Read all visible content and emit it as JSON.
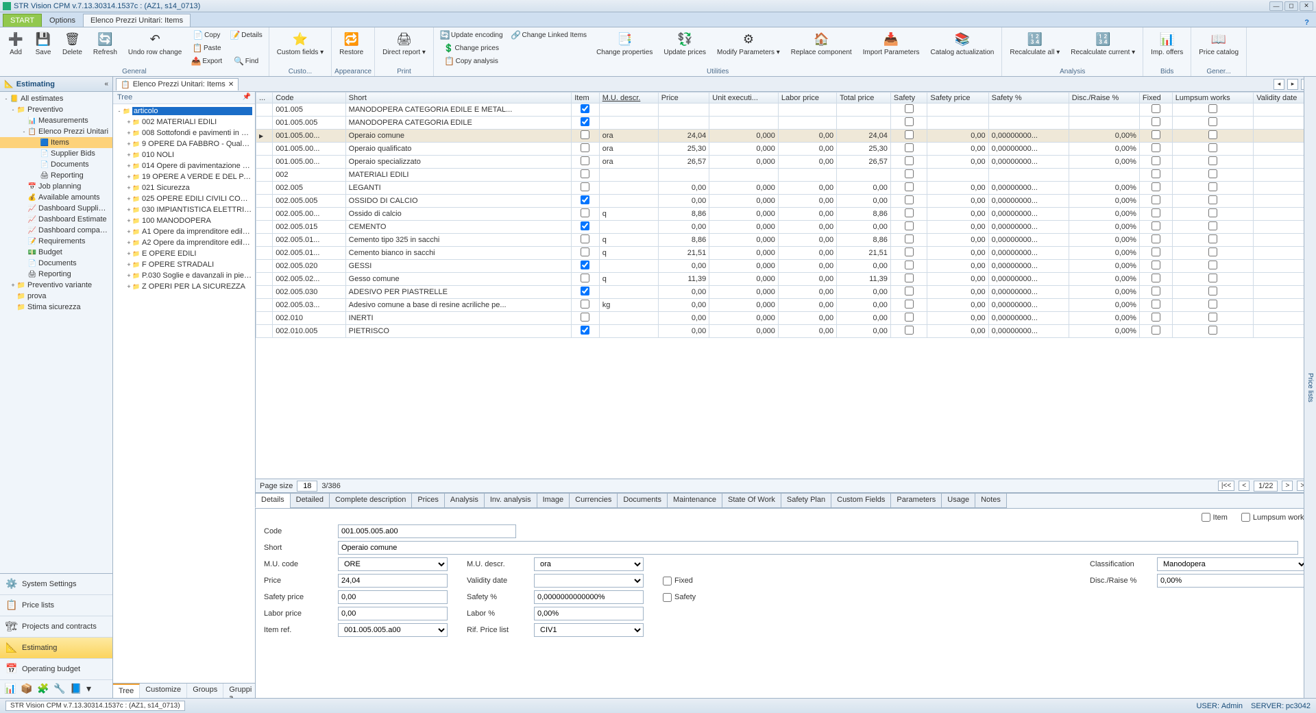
{
  "app": {
    "title": "STR Vision CPM v.7.13.30314.1537c : (AZ1, s14_0713)",
    "status_title": "STR Vision CPM v.7.13.30314.1537c : (AZ1, s14_0713)",
    "user_label": "USER:",
    "user": "Admin",
    "server_label": "SERVER:",
    "server": "pc3042"
  },
  "ribbon_tabs": {
    "start": "START",
    "options": "Options",
    "active": "Elenco Prezzi Unitari: Items"
  },
  "ribbon": {
    "groups": {
      "general": {
        "label": "General"
      },
      "custo": {
        "label": "Custo..."
      },
      "appear": {
        "label": "Appearance"
      },
      "print": {
        "label": "Print"
      },
      "utilities": {
        "label": "Utilities"
      },
      "analysis": {
        "label": "Analysis"
      },
      "bids": {
        "label": "Bids"
      },
      "gener": {
        "label": "Gener..."
      }
    },
    "btns": {
      "add": "Add",
      "save": "Save",
      "delete": "Delete",
      "refresh": "Refresh",
      "undo": "Undo row change",
      "copy": "Copy",
      "paste": "Paste",
      "export": "Export",
      "details": "Details",
      "find": "Find",
      "custom_fields": "Custom fields ▾",
      "restore": "Restore",
      "direct_report": "Direct report ▾",
      "update_encoding": "Update encoding",
      "change_prices": "Change prices",
      "copy_analysis": "Copy analysis",
      "change_linked": "Change Linked Items",
      "change_props": "Change properties",
      "update_prices": "Update prices",
      "modify_params": "Modify Parameters ▾",
      "replace_comp": "Replace component",
      "import_params": "Import Parameters",
      "catalog_act": "Catalog actualization",
      "recalc_all": "Recalculate all ▾",
      "recalc_cur": "Recalculate current ▾",
      "imp_offers": "Imp. offers",
      "price_catalog": "Price catalog"
    }
  },
  "leftnav": {
    "title": "Estimating",
    "tree": [
      {
        "pad": 4,
        "exp": "-",
        "ic": "📒",
        "lbl": "All estimates"
      },
      {
        "pad": 14,
        "exp": "-",
        "ic": "📁",
        "lbl": "Preventivo"
      },
      {
        "pad": 30,
        "exp": " ",
        "ic": "📊",
        "lbl": "Measurements"
      },
      {
        "pad": 30,
        "exp": "-",
        "ic": "📋",
        "lbl": "Elenco Prezzi Unitari"
      },
      {
        "pad": 48,
        "exp": " ",
        "ic": "🟦",
        "lbl": "Items",
        "sel": true
      },
      {
        "pad": 48,
        "exp": " ",
        "ic": "📄",
        "lbl": "Supplier Bids"
      },
      {
        "pad": 48,
        "exp": " ",
        "ic": "📄",
        "lbl": "Documents"
      },
      {
        "pad": 48,
        "exp": " ",
        "ic": "🖨",
        "lbl": "Reporting"
      },
      {
        "pad": 30,
        "exp": " ",
        "ic": "📅",
        "lbl": "Job planning"
      },
      {
        "pad": 30,
        "exp": " ",
        "ic": "💰",
        "lbl": "Available amounts"
      },
      {
        "pad": 30,
        "exp": " ",
        "ic": "📈",
        "lbl": "Dashboard Supplier Bids"
      },
      {
        "pad": 30,
        "exp": " ",
        "ic": "📈",
        "lbl": "Dashboard Estimate"
      },
      {
        "pad": 30,
        "exp": " ",
        "ic": "📈",
        "lbl": "Dashboard comparison"
      },
      {
        "pad": 30,
        "exp": " ",
        "ic": "📝",
        "lbl": "Requirements"
      },
      {
        "pad": 30,
        "exp": " ",
        "ic": "💵",
        "lbl": "Budget"
      },
      {
        "pad": 30,
        "exp": " ",
        "ic": "📄",
        "lbl": "Documents"
      },
      {
        "pad": 30,
        "exp": " ",
        "ic": "🖨",
        "lbl": "Reporting"
      },
      {
        "pad": 14,
        "exp": "+",
        "ic": "📁",
        "lbl": "Preventivo variante"
      },
      {
        "pad": 14,
        "exp": " ",
        "ic": "📁",
        "lbl": "prova"
      },
      {
        "pad": 14,
        "exp": " ",
        "ic": "📁",
        "lbl": "Stima sicurezza"
      }
    ],
    "bottom": [
      {
        "ic": "⚙️",
        "lbl": "System Settings"
      },
      {
        "ic": "📋",
        "lbl": "Price lists"
      },
      {
        "ic": "🏗",
        "lbl": "Projects and contracts"
      },
      {
        "ic": "📐",
        "lbl": "Estimating",
        "active": true
      },
      {
        "ic": "📅",
        "lbl": "Operating budget"
      }
    ]
  },
  "doctab": {
    "title": "Elenco Prezzi Unitari: Items"
  },
  "tree_panel": {
    "head": "Tree",
    "nodes": [
      {
        "pad": 4,
        "exp": "-",
        "root": true,
        "lbl": "articolo"
      },
      {
        "pad": 18,
        "exp": "+",
        "lbl": "002 MATERIALI EDILI"
      },
      {
        "pad": 18,
        "exp": "+",
        "lbl": "008 Sottofondi e pavimenti in cemento"
      },
      {
        "pad": 18,
        "exp": "+",
        "lbl": "9 OPERE DA FABBRO - Qualora le f..."
      },
      {
        "pad": 18,
        "exp": "+",
        "lbl": "010 NOLI"
      },
      {
        "pad": 18,
        "exp": "+",
        "lbl": "014 Opere di pavimentazione e rive..."
      },
      {
        "pad": 18,
        "exp": "+",
        "lbl": "19 OPERE A VERDE E DEL PAESAGGIO"
      },
      {
        "pad": 18,
        "exp": "+",
        "lbl": "021 Sicurezza"
      },
      {
        "pad": 18,
        "exp": "+",
        "lbl": "025 OPERE EDILI CIVILI CON ANALISI"
      },
      {
        "pad": 18,
        "exp": "+",
        "lbl": "030 IMPIANTISTICA ELETTRICA"
      },
      {
        "pad": 18,
        "exp": "+",
        "lbl": "100 MANODOPERA"
      },
      {
        "pad": 18,
        "exp": "+",
        "lbl": "A1 Opere da imprenditore edile: nu..."
      },
      {
        "pad": 18,
        "exp": "+",
        "lbl": "A2 Opere da imprenditore edile: rist..."
      },
      {
        "pad": 18,
        "exp": "+",
        "lbl": "E OPERE EDILI"
      },
      {
        "pad": 18,
        "exp": "+",
        "lbl": "F OPERE STRADALI"
      },
      {
        "pad": 18,
        "exp": "+",
        "lbl": "P.030 Soglie e davanzali in pietra Pi..."
      },
      {
        "pad": 18,
        "exp": "+",
        "lbl": "Z OPERI PER LA SICUREZZA"
      }
    ],
    "tabs": [
      "Tree",
      "Customize",
      "Groups",
      "Gruppi a"
    ]
  },
  "grid": {
    "columns": [
      "...",
      "Code",
      "Short",
      "Item",
      "M.U. descr.",
      "Price",
      "Unit executi...",
      "Labor price",
      "Total price",
      "Safety",
      "Safety price",
      "Safety %",
      "Disc./Raise %",
      "Fixed",
      "Lumpsum works",
      "Validity date"
    ],
    "rows": [
      {
        "code": "001.005",
        "short": "MANODOPERA CATEGORIA EDILE E METAL...",
        "item": true,
        "mu": "",
        "price": "",
        "ue": "",
        "lp": "",
        "tp": "",
        "sf": false,
        "sp": "",
        "spc": "",
        "dr": "",
        "fix": false,
        "lw": false,
        "vd": ""
      },
      {
        "code": "001.005.005",
        "short": "MANODOPERA CATEGORIA EDILE",
        "item": true,
        "mu": "",
        "price": "",
        "ue": "",
        "lp": "",
        "tp": "",
        "sf": false,
        "sp": "",
        "spc": "",
        "dr": "",
        "fix": false,
        "lw": false,
        "vd": ""
      },
      {
        "sel": true,
        "code": "001.005.00...",
        "short": "Operaio comune",
        "item": false,
        "mu": "ora",
        "price": "24,04",
        "ue": "0,000",
        "lp": "0,00",
        "tp": "24,04",
        "sf": false,
        "sp": "0,00",
        "spc": "0,00000000...",
        "dr": "0,00%",
        "fix": false,
        "lw": false,
        "vd": ""
      },
      {
        "code": "001.005.00...",
        "short": "Operaio qualificato",
        "item": false,
        "mu": "ora",
        "price": "25,30",
        "ue": "0,000",
        "lp": "0,00",
        "tp": "25,30",
        "sf": false,
        "sp": "0,00",
        "spc": "0,00000000...",
        "dr": "0,00%",
        "fix": false,
        "lw": false,
        "vd": ""
      },
      {
        "code": "001.005.00...",
        "short": "Operaio specializzato",
        "item": false,
        "mu": "ora",
        "price": "26,57",
        "ue": "0,000",
        "lp": "0,00",
        "tp": "26,57",
        "sf": false,
        "sp": "0,00",
        "spc": "0,00000000...",
        "dr": "0,00%",
        "fix": false,
        "lw": false,
        "vd": ""
      },
      {
        "code": "002",
        "short": "MATERIALI EDILI",
        "item": false,
        "mu": "",
        "price": "",
        "ue": "",
        "lp": "",
        "tp": "",
        "sf": false,
        "sp": "",
        "spc": "",
        "dr": "",
        "fix": false,
        "lw": false,
        "vd": ""
      },
      {
        "code": "002.005",
        "short": "LEGANTI",
        "item": false,
        "mu": "",
        "price": "0,00",
        "ue": "0,000",
        "lp": "0,00",
        "tp": "0,00",
        "sf": false,
        "sp": "0,00",
        "spc": "0,00000000...",
        "dr": "0,00%",
        "fix": false,
        "lw": false,
        "vd": ""
      },
      {
        "code": "002.005.005",
        "short": "OSSIDO DI CALCIO",
        "item": true,
        "mu": "",
        "price": "0,00",
        "ue": "0,000",
        "lp": "0,00",
        "tp": "0,00",
        "sf": false,
        "sp": "0,00",
        "spc": "0,00000000...",
        "dr": "0,00%",
        "fix": false,
        "lw": false,
        "vd": ""
      },
      {
        "code": "002.005.00...",
        "short": "Ossido di calcio",
        "item": false,
        "mu": "q",
        "price": "8,86",
        "ue": "0,000",
        "lp": "0,00",
        "tp": "8,86",
        "sf": false,
        "sp": "0,00",
        "spc": "0,00000000...",
        "dr": "0,00%",
        "fix": false,
        "lw": false,
        "vd": ""
      },
      {
        "code": "002.005.015",
        "short": "CEMENTO",
        "item": true,
        "mu": "",
        "price": "0,00",
        "ue": "0,000",
        "lp": "0,00",
        "tp": "0,00",
        "sf": false,
        "sp": "0,00",
        "spc": "0,00000000...",
        "dr": "0,00%",
        "fix": false,
        "lw": false,
        "vd": ""
      },
      {
        "code": "002.005.01...",
        "short": "Cemento tipo 325 in sacchi",
        "item": false,
        "mu": "q",
        "price": "8,86",
        "ue": "0,000",
        "lp": "0,00",
        "tp": "8,86",
        "sf": false,
        "sp": "0,00",
        "spc": "0,00000000...",
        "dr": "0,00%",
        "fix": false,
        "lw": false,
        "vd": ""
      },
      {
        "code": "002.005.01...",
        "short": "Cemento bianco in sacchi",
        "item": false,
        "mu": "q",
        "price": "21,51",
        "ue": "0,000",
        "lp": "0,00",
        "tp": "21,51",
        "sf": false,
        "sp": "0,00",
        "spc": "0,00000000...",
        "dr": "0,00%",
        "fix": false,
        "lw": false,
        "vd": ""
      },
      {
        "code": "002.005.020",
        "short": "GESSI",
        "item": true,
        "mu": "",
        "price": "0,00",
        "ue": "0,000",
        "lp": "0,00",
        "tp": "0,00",
        "sf": false,
        "sp": "0,00",
        "spc": "0,00000000...",
        "dr": "0,00%",
        "fix": false,
        "lw": false,
        "vd": ""
      },
      {
        "code": "002.005.02...",
        "short": "Gesso comune",
        "item": false,
        "mu": "q",
        "price": "11,39",
        "ue": "0,000",
        "lp": "0,00",
        "tp": "11,39",
        "sf": false,
        "sp": "0,00",
        "spc": "0,00000000...",
        "dr": "0,00%",
        "fix": false,
        "lw": false,
        "vd": ""
      },
      {
        "code": "002.005.030",
        "short": "ADESIVO PER PIASTRELLE",
        "item": true,
        "mu": "",
        "price": "0,00",
        "ue": "0,000",
        "lp": "0,00",
        "tp": "0,00",
        "sf": false,
        "sp": "0,00",
        "spc": "0,00000000...",
        "dr": "0,00%",
        "fix": false,
        "lw": false,
        "vd": ""
      },
      {
        "code": "002.005.03...",
        "short": "Adesivo comune a base di resine acriliche pe...",
        "item": false,
        "mu": "kg",
        "price": "0,00",
        "ue": "0,000",
        "lp": "0,00",
        "tp": "0,00",
        "sf": false,
        "sp": "0,00",
        "spc": "0,00000000...",
        "dr": "0,00%",
        "fix": false,
        "lw": false,
        "vd": ""
      },
      {
        "code": "002.010",
        "short": "INERTI",
        "item": false,
        "mu": "",
        "price": "0,00",
        "ue": "0,000",
        "lp": "0,00",
        "tp": "0,00",
        "sf": false,
        "sp": "0,00",
        "spc": "0,00000000...",
        "dr": "0,00%",
        "fix": false,
        "lw": false,
        "vd": ""
      },
      {
        "code": "002.010.005",
        "short": "PIETRISCO",
        "item": true,
        "mu": "",
        "price": "0,00",
        "ue": "0,000",
        "lp": "0,00",
        "tp": "0,00",
        "sf": false,
        "sp": "0,00",
        "spc": "0,00000000...",
        "dr": "0,00%",
        "fix": false,
        "lw": false,
        "vd": ""
      }
    ],
    "pager": {
      "page_size_lbl": "Page size",
      "page_size": "18",
      "pos": "3/386",
      "page_idx": "1/22"
    }
  },
  "detail": {
    "tabs": [
      "Details",
      "Detailed",
      "Complete description",
      "Prices",
      "Analysis",
      "Inv. analysis",
      "Image",
      "Currencies",
      "Documents",
      "Maintenance",
      "State Of Work",
      "Safety Plan",
      "Custom Fields",
      "Parameters",
      "Usage",
      "Notes"
    ],
    "top_checks": {
      "item": "Item",
      "lumpsum": "Lumpsum works"
    },
    "labels": {
      "code": "Code",
      "short": "Short",
      "mu_code": "M.U. code",
      "mu_descr": "M.U. descr.",
      "classification": "Classification",
      "price": "Price",
      "validity": "Validity date",
      "fixed": "Fixed",
      "disc": "Disc./Raise %",
      "safety_price": "Safety price",
      "safety_pct": "Safety %",
      "safety": "Safety",
      "labor_price": "Labor price",
      "labor_pct": "Labor %",
      "item_ref": "Item ref.",
      "rif": "Rif. Price list"
    },
    "values": {
      "code": "001.005.005.a00",
      "short": "Operaio comune",
      "mu_code": "ORE",
      "mu_descr": "ora",
      "classification": "Manodopera",
      "price": "24,04",
      "validity": "",
      "disc": "0,00%",
      "safety_price": "0,00",
      "safety_pct": "0,0000000000000%",
      "labor_price": "0,00",
      "labor_pct": "0,00%",
      "item_ref": "001.005.005.a00",
      "rif": "CIV1"
    }
  },
  "rightstrip": "Price lists"
}
